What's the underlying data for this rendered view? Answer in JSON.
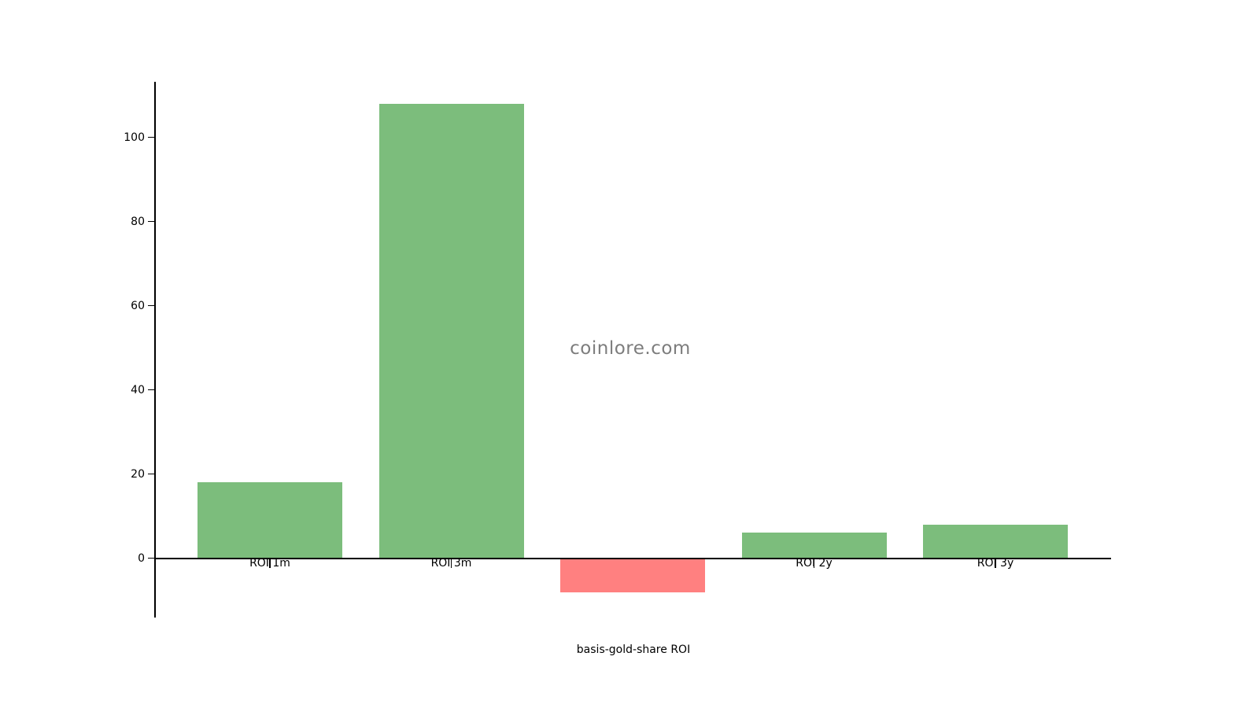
{
  "page": {
    "background": "#ffffff"
  },
  "chart_data": {
    "type": "bar",
    "title": "basis-gold-share ROI",
    "title_position": "bottom",
    "watermark": "coinlore.com",
    "categories": [
      "ROI 1m",
      "ROI 3m",
      "",
      "ROI 2y",
      "ROI 3y"
    ],
    "values": [
      18,
      108,
      -8,
      6,
      8
    ],
    "y_ticks": [
      0,
      20,
      40,
      60,
      80,
      100
    ],
    "y_tick_labels": [
      "0",
      "20",
      "40",
      "60",
      "80",
      "100"
    ],
    "ylim": [
      -14,
      113
    ],
    "xlabel": "",
    "ylabel": "",
    "grid": false,
    "legend": false,
    "bar_color_positive": "#7cbd7c",
    "bar_color_negative": "#ff8080",
    "axis_color": "#000000",
    "watermark_color": "#7d7d7d",
    "note": "middle bar label hidden behind negative red bar"
  }
}
